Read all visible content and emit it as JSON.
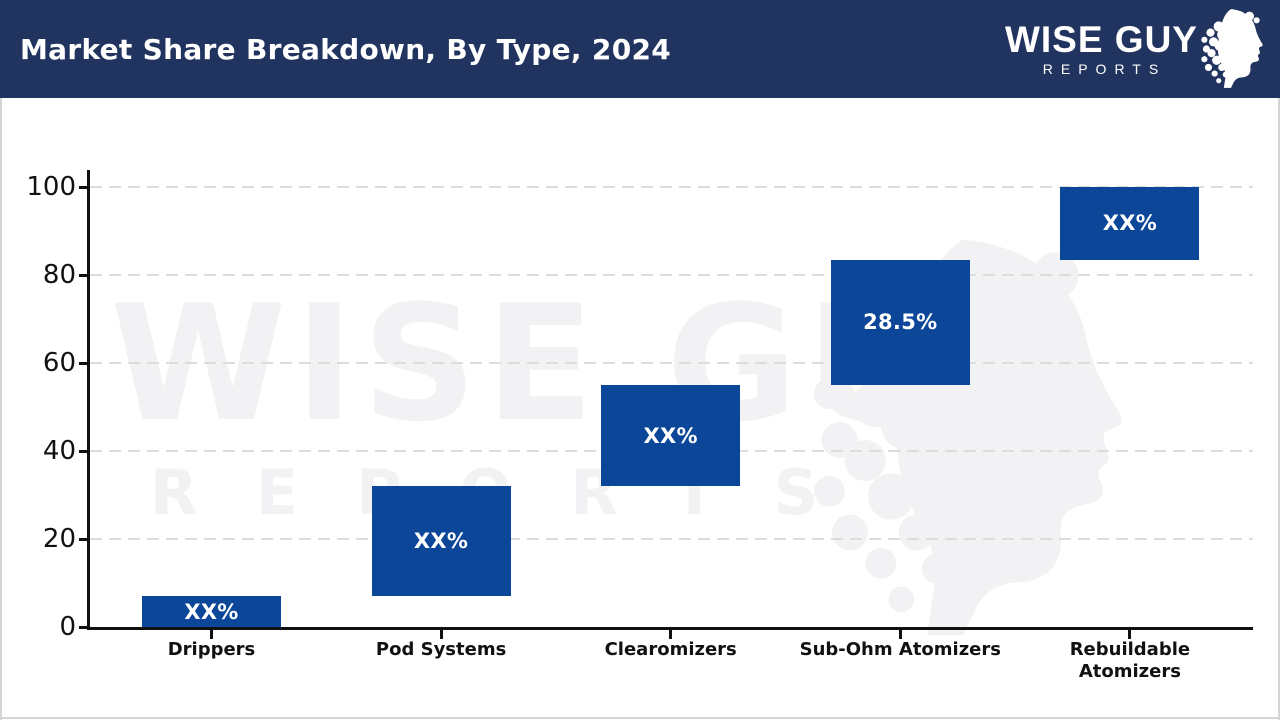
{
  "header": {
    "title": "Market Share Breakdown, By Type, 2024",
    "logo": {
      "line1": "WISE GUY",
      "line2": "REPORTS"
    }
  },
  "watermark": {
    "line1": "WISE GUY",
    "line2": "REPORTS"
  },
  "colors": {
    "header_bg": "#21345f",
    "bar": "#0b4699",
    "bar_label": "#ffffff",
    "gridline": "#dcdcdc",
    "axis": "#111111",
    "watermark": "#f2f2f4"
  },
  "chart_data": {
    "type": "bar",
    "subtype": "floating-waterfall",
    "title": "Market Share Breakdown, By Type, 2024",
    "xlabel": "",
    "ylabel": "",
    "ylim": [
      0,
      100
    ],
    "yticks": [
      0,
      20,
      40,
      60,
      80,
      100
    ],
    "grid": "horizontal-dashed",
    "legend": "none",
    "categories": [
      "Drippers",
      "Pod Systems",
      "Clearomizers",
      "Sub-Ohm Atomizers",
      "Rebuildable Atomizers"
    ],
    "segments": [
      {
        "category": "Drippers",
        "start": 0,
        "end": 7,
        "value_label": "XX%",
        "tick_lines": [
          "Drippers"
        ]
      },
      {
        "category": "Pod Systems",
        "start": 7,
        "end": 32,
        "value_label": "XX%",
        "tick_lines": [
          "Pod Systems"
        ]
      },
      {
        "category": "Clearomizers",
        "start": 32,
        "end": 55,
        "value_label": "XX%",
        "tick_lines": [
          "Clearomizers"
        ]
      },
      {
        "category": "Sub-Ohm Atomizers",
        "start": 55,
        "end": 83.5,
        "value_label": "28.5%",
        "tick_lines": [
          "Sub-Ohm Atomizers"
        ]
      },
      {
        "category": "Rebuildable Atomizers",
        "start": 83.5,
        "end": 100,
        "value_label": "XX%",
        "tick_lines": [
          "Rebuildable",
          "Atomizers"
        ]
      }
    ]
  }
}
